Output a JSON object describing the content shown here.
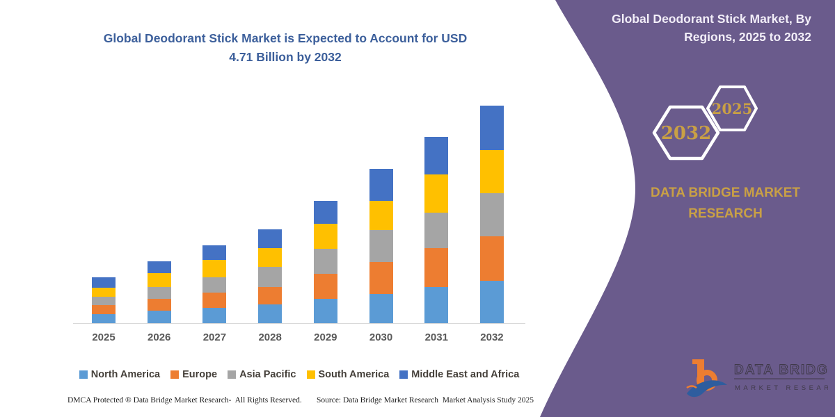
{
  "chart_title": {
    "lines": [
      "Global Deodorant Stick Market is Expected to Account for USD",
      "4.71 Billion by 2032"
    ]
  },
  "chart_data": {
    "type": "bar",
    "stacked": true,
    "title": "Global Deodorant Stick Market is Expected to Account for USD 4.71 Billion by 2032",
    "unit": "USD Billion",
    "categories": [
      "2025",
      "2026",
      "2027",
      "2028",
      "2029",
      "2030",
      "2031",
      "2032"
    ],
    "series": [
      {
        "name": "North America",
        "color": "#5B9BD5",
        "values": [
          0.2,
          0.27,
          0.33,
          0.4,
          0.53,
          0.63,
          0.78,
          0.92
        ]
      },
      {
        "name": "Europe",
        "color": "#ED7D31",
        "values": [
          0.2,
          0.25,
          0.33,
          0.38,
          0.54,
          0.7,
          0.84,
          0.97
        ]
      },
      {
        "name": "Asia Pacific",
        "color": "#A5A5A5",
        "values": [
          0.18,
          0.25,
          0.33,
          0.43,
          0.55,
          0.69,
          0.77,
          0.93
        ]
      },
      {
        "name": "South America",
        "color": "#FFC000",
        "values": [
          0.2,
          0.3,
          0.37,
          0.4,
          0.55,
          0.64,
          0.83,
          0.93
        ]
      },
      {
        "name": "Middle East and Africa",
        "color": "#4472C4",
        "values": [
          0.22,
          0.26,
          0.31,
          0.41,
          0.49,
          0.69,
          0.82,
          0.96
        ]
      }
    ],
    "totals": [
      1.0,
      1.33,
      1.67,
      2.02,
      2.66,
      3.35,
      4.04,
      4.71
    ],
    "ylim": [
      0,
      4.9
    ],
    "grid": false,
    "y_axis_visible": false,
    "legend_position": "bottom"
  },
  "footer": {
    "dmca": "DMCA Protected ® Data Bridge Market Research-  All Rights Reserved.",
    "source": "Source: Data Bridge Market Research  Market Analysis Study 2025"
  },
  "panel": {
    "title_lines": [
      "Global Deodorant Stick Market, By",
      "Regions, 2025 to 2032"
    ],
    "hexagons": [
      {
        "label": "2032"
      },
      {
        "label": "2025"
      }
    ],
    "brand_text": "DATA BRIDGE MARKET RESEARCH",
    "colors": {
      "panel_bg": "#6a5b8c",
      "gold": "#c9a045",
      "hex_stroke": "#ffffff"
    }
  },
  "logo": {
    "line1": "DATA BRIDGE",
    "line2": "MARKET RESEARCH"
  }
}
